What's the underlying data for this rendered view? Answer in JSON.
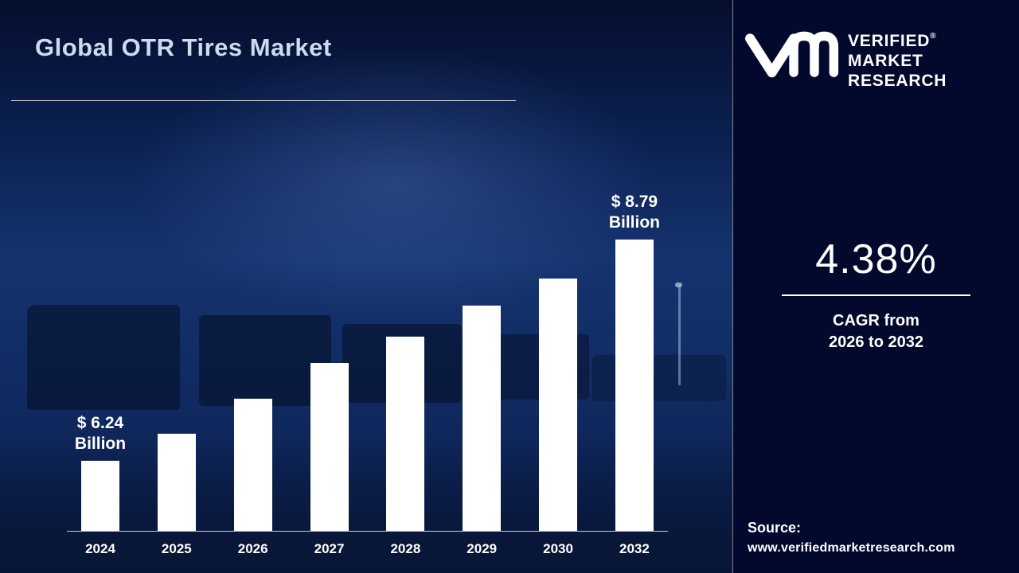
{
  "header": {
    "title": "Global OTR Tires Market"
  },
  "branding": {
    "logo": "vmr-monogram",
    "name_line1": "VERIFIED",
    "name_line2": "MARKET",
    "name_line3": "RESEARCH",
    "registered_mark": "®"
  },
  "stats": {
    "cagr_value": "4.38%",
    "cagr_line1": "CAGR from",
    "cagr_line2": "2026 to 2032"
  },
  "source": {
    "label": "Source:",
    "url": "www.verifiedmarketresearch.com"
  },
  "colors": {
    "panel_bg": "#03092c",
    "scene_bg": "#112c63",
    "bar": "#ffffff",
    "title": "#ccdcef"
  },
  "chart_data": {
    "type": "bar",
    "title": "Global OTR Tires Market",
    "categories": [
      "2024",
      "2025",
      "2026",
      "2027",
      "2028",
      "2029",
      "2030",
      "2032"
    ],
    "values": [
      6.24,
      6.55,
      6.95,
      7.37,
      7.67,
      8.03,
      8.34,
      8.79
    ],
    "labeled_values": {
      "2024": "$ 6.24 Billion",
      "2032": "$ 8.79 Billion"
    },
    "annotations": [
      {
        "index": 0,
        "value": "$ 6.24",
        "unit": "Billion"
      },
      {
        "index": 7,
        "value": "$ 8.79",
        "unit": "Billion"
      }
    ],
    "xlabel": "",
    "ylabel": "",
    "ylim": [
      5.4,
      9.0
    ],
    "gridlines": false,
    "axis_line": true,
    "legend": "none"
  }
}
